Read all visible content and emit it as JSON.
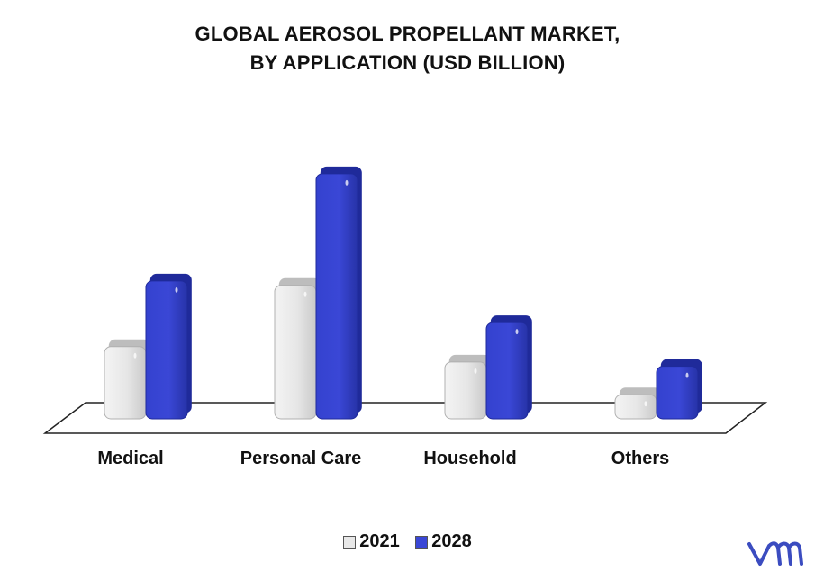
{
  "chart_data": {
    "type": "bar",
    "title_lines": [
      "GLOBAL AEROSOL PROPELLANT MARKET,",
      "BY APPLICATION (USD BILLION)"
    ],
    "categories": [
      "Medical",
      "Personal Care",
      "Household",
      "Others"
    ],
    "series": [
      {
        "name": "2021",
        "color": "#e8e8e8",
        "values": [
          3.3,
          6.1,
          2.6,
          1.1
        ]
      },
      {
        "name": "2028",
        "color": "#3a47d6",
        "values": [
          6.3,
          11.2,
          4.4,
          2.4
        ]
      }
    ],
    "ylim": [
      0,
      12
    ],
    "grid": false,
    "legend_position": "bottom"
  },
  "brand": {
    "logo_icon": "vmr-logo-icon",
    "logo_color": "#3b4cc0"
  }
}
